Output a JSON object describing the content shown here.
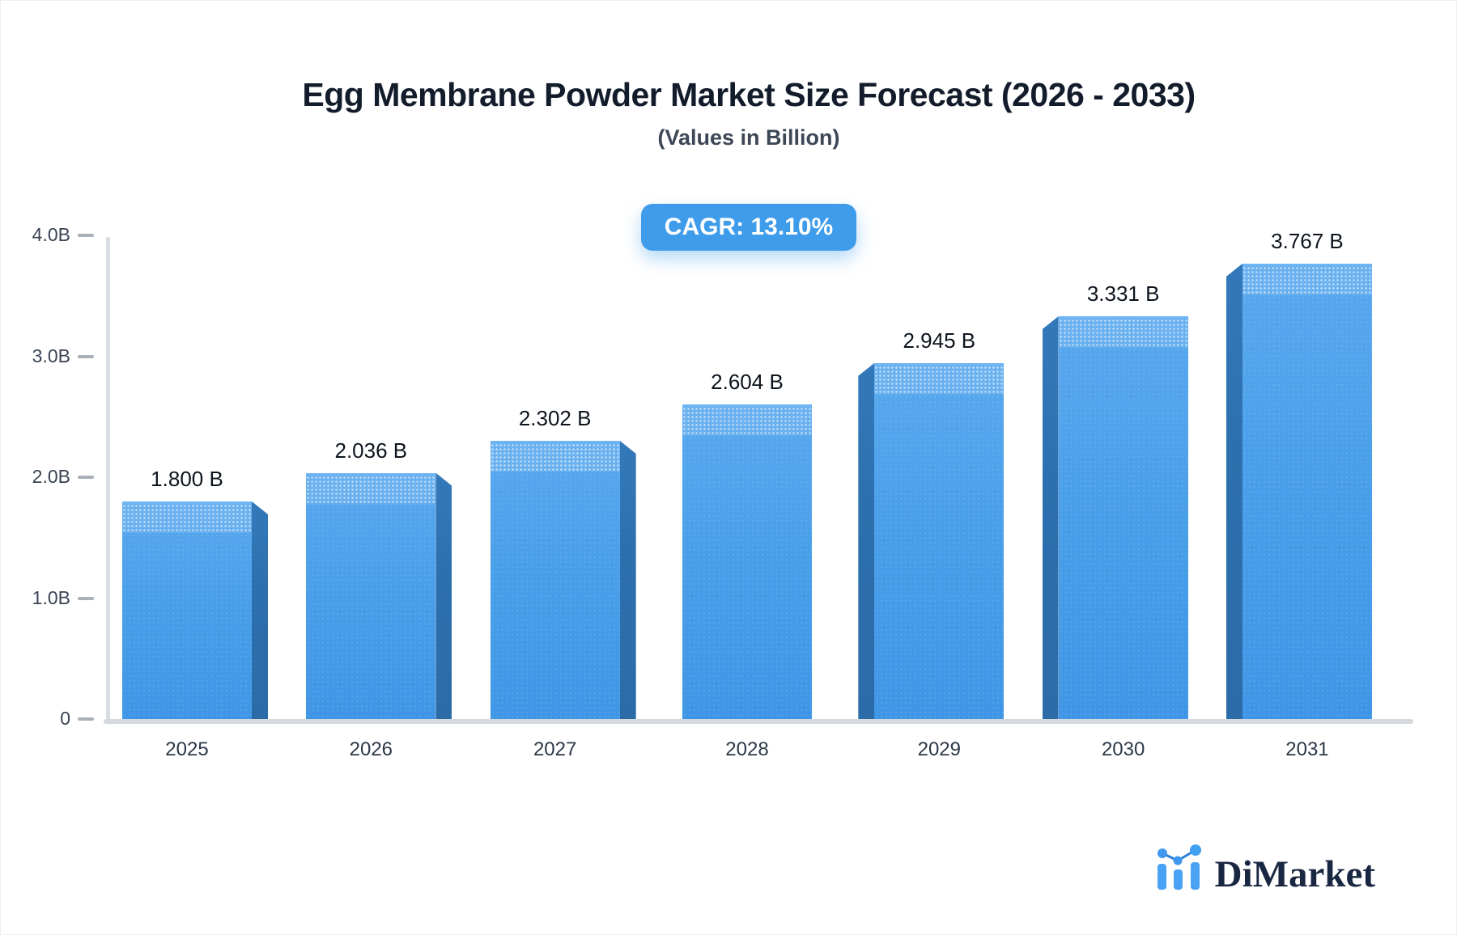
{
  "title": "Egg Membrane Powder Market Size Forecast (2026 - 2033)",
  "subtitle": "(Values in Billion)",
  "badge": {
    "label": "CAGR: 13.10%",
    "bg": "#3f9cea"
  },
  "chart_data": {
    "type": "bar",
    "categories": [
      "2025",
      "2026",
      "2027",
      "2028",
      "2029",
      "2030",
      "2031"
    ],
    "values": [
      1.8,
      2.036,
      2.302,
      2.604,
      2.945,
      3.331,
      3.767
    ],
    "value_labels": [
      "1.800 B",
      "2.036 B",
      "2.302 B",
      "2.604 B",
      "2.945 B",
      "3.331 B",
      "3.767 B"
    ],
    "title": "Egg Membrane Powder Market Size Forecast (2026 - 2033)",
    "subtitle": "(Values in Billion)",
    "xlabel": "",
    "ylabel": "",
    "ylim": [
      0,
      4.0
    ],
    "yticks": [
      {
        "value": 0,
        "label": "0"
      },
      {
        "value": 1.0,
        "label": "1.0B"
      },
      {
        "value": 2.0,
        "label": "2.0B"
      },
      {
        "value": 3.0,
        "label": "3.0B"
      },
      {
        "value": 4.0,
        "label": "4.0B"
      }
    ],
    "grid": false,
    "legend": false,
    "style": "3d-perspective-center-vanishing-point"
  },
  "colors": {
    "bar_face": "#4a9fe9",
    "bar_face_light": "#59a8ef",
    "bar_side": "#2e6fae",
    "badge_bg": "#3f9cea",
    "axis_line": "#d9dce1",
    "logo_navy": "#1a2742",
    "logo_blue": "#42a0f2"
  },
  "logo": {
    "text": "DiMarket",
    "icon": "bar-line-chart-icon"
  }
}
